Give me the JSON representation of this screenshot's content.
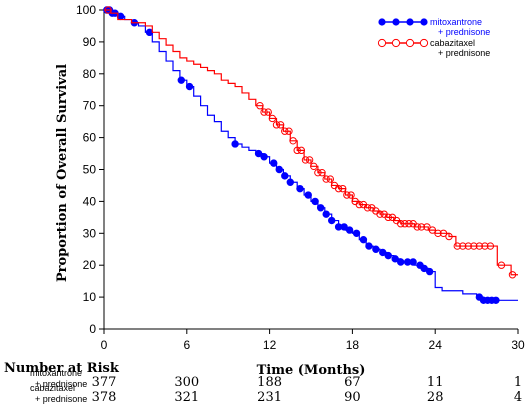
{
  "chart_data": {
    "type": "line",
    "title": "",
    "ylabel": "Proportion of Overall Survival",
    "xlabel": "Time (Months)",
    "xlim": [
      0,
      30
    ],
    "ylim": [
      0,
      100
    ],
    "x_ticks": [
      0,
      6,
      12,
      18,
      24,
      30
    ],
    "y_ticks": [
      0,
      10,
      20,
      30,
      40,
      50,
      60,
      70,
      80,
      90,
      100
    ],
    "legend_position": "top-right",
    "grid": false,
    "series": [
      {
        "name": "mitoxantrone + prednisone",
        "legend_lines": [
          "mitoxantrone",
          "+ prednisone"
        ],
        "color": "#0000ff",
        "marker": "filled-circle",
        "points": [
          [
            0,
            100
          ],
          [
            0.5,
            99
          ],
          [
            1,
            98
          ],
          [
            1.5,
            97
          ],
          [
            2,
            96
          ],
          [
            2.5,
            95
          ],
          [
            3,
            93
          ],
          [
            3.5,
            90
          ],
          [
            4,
            87
          ],
          [
            4.5,
            84
          ],
          [
            5,
            81
          ],
          [
            5.5,
            78
          ],
          [
            6,
            76
          ],
          [
            6.5,
            73
          ],
          [
            7,
            70
          ],
          [
            7.5,
            67
          ],
          [
            8,
            65
          ],
          [
            8.5,
            62
          ],
          [
            9,
            60
          ],
          [
            9.5,
            58
          ],
          [
            10,
            57
          ],
          [
            10.5,
            56
          ],
          [
            11,
            55
          ],
          [
            11.5,
            54
          ],
          [
            12,
            52
          ],
          [
            12.5,
            50
          ],
          [
            13,
            48
          ],
          [
            13.5,
            46
          ],
          [
            14,
            44
          ],
          [
            14.5,
            42
          ],
          [
            15,
            40
          ],
          [
            15.5,
            38
          ],
          [
            16,
            36
          ],
          [
            16.5,
            34
          ],
          [
            17,
            32
          ],
          [
            17.5,
            31
          ],
          [
            18,
            30
          ],
          [
            18.5,
            28
          ],
          [
            19,
            26
          ],
          [
            19.5,
            25
          ],
          [
            20,
            24
          ],
          [
            20.5,
            23
          ],
          [
            21,
            22
          ],
          [
            21.5,
            21
          ],
          [
            22,
            21
          ],
          [
            22.5,
            20
          ],
          [
            23,
            19
          ],
          [
            23.5,
            18
          ],
          [
            24,
            13
          ],
          [
            24.5,
            12
          ],
          [
            25,
            12
          ],
          [
            25.5,
            12
          ],
          [
            26,
            11
          ],
          [
            26.5,
            11
          ],
          [
            27,
            10
          ],
          [
            27.5,
            9
          ],
          [
            28,
            9
          ],
          [
            28.5,
            9
          ],
          [
            29,
            9
          ],
          [
            30,
            9
          ]
        ],
        "marker_x": [
          0.2,
          0.4,
          0.6,
          0.8,
          1.2,
          2.2,
          3.3,
          5.6,
          6.2,
          9.5,
          11.2,
          11.6,
          12.3,
          12.7,
          13.1,
          13.5,
          14.2,
          14.8,
          15.3,
          15.7,
          16.1,
          16.5,
          17.0,
          17.4,
          17.8,
          18.3,
          18.8,
          19.2,
          19.7,
          20.2,
          20.6,
          21.1,
          21.5,
          22.0,
          22.4,
          22.9,
          23.2,
          23.6,
          27.2,
          27.5,
          27.8,
          28.1,
          28.4
        ]
      },
      {
        "name": "cabazitaxel + prednisone",
        "legend_lines": [
          "cabazitaxel",
          "+ prednisone"
        ],
        "color": "#ff0000",
        "marker": "open-circle",
        "points": [
          [
            0,
            100
          ],
          [
            0.5,
            99
          ],
          [
            1,
            97
          ],
          [
            1.5,
            97
          ],
          [
            2,
            96
          ],
          [
            2.5,
            96
          ],
          [
            3,
            95
          ],
          [
            3.5,
            93
          ],
          [
            4,
            91
          ],
          [
            4.5,
            89
          ],
          [
            5,
            87
          ],
          [
            5.5,
            85
          ],
          [
            6,
            84
          ],
          [
            6.5,
            83
          ],
          [
            7,
            82
          ],
          [
            7.5,
            81
          ],
          [
            8,
            80
          ],
          [
            8.5,
            78
          ],
          [
            9,
            77
          ],
          [
            9.5,
            76
          ],
          [
            10,
            74
          ],
          [
            10.5,
            72
          ],
          [
            11,
            70
          ],
          [
            11.5,
            68
          ],
          [
            12,
            66
          ],
          [
            12.5,
            64
          ],
          [
            13,
            62
          ],
          [
            13.5,
            59
          ],
          [
            14,
            56
          ],
          [
            14.5,
            53
          ],
          [
            15,
            51
          ],
          [
            15.5,
            49
          ],
          [
            16,
            47
          ],
          [
            16.5,
            45
          ],
          [
            17,
            44
          ],
          [
            17.5,
            42
          ],
          [
            18,
            40
          ],
          [
            18.5,
            39
          ],
          [
            19,
            38
          ],
          [
            19.5,
            37
          ],
          [
            20,
            36
          ],
          [
            20.5,
            35
          ],
          [
            21,
            34
          ],
          [
            21.5,
            33
          ],
          [
            22,
            33
          ],
          [
            22.5,
            32
          ],
          [
            23,
            32
          ],
          [
            23.5,
            31
          ],
          [
            24,
            30
          ],
          [
            24.5,
            30
          ],
          [
            25,
            29
          ],
          [
            25.5,
            26
          ],
          [
            26,
            26
          ],
          [
            26.5,
            26
          ],
          [
            27,
            26
          ],
          [
            27.5,
            26
          ],
          [
            28,
            26
          ],
          [
            28.5,
            20
          ],
          [
            29,
            20
          ],
          [
            29.5,
            17
          ],
          [
            30,
            17
          ]
        ],
        "marker_x": [
          0.3,
          11.3,
          11.6,
          11.9,
          12.2,
          12.5,
          12.8,
          13.1,
          13.4,
          13.7,
          14.0,
          14.3,
          14.6,
          14.9,
          15.2,
          15.5,
          15.8,
          16.1,
          16.4,
          16.7,
          17.0,
          17.3,
          17.6,
          17.9,
          18.2,
          18.5,
          18.8,
          19.1,
          19.4,
          19.7,
          20.0,
          20.3,
          20.6,
          20.9,
          21.2,
          21.5,
          21.8,
          22.1,
          22.4,
          22.7,
          23.0,
          23.4,
          23.8,
          24.2,
          24.6,
          25.0,
          25.6,
          26.0,
          26.4,
          26.8,
          27.2,
          27.6,
          28.0,
          28.8,
          29.6
        ]
      }
    ]
  },
  "risk_table": {
    "title": "Number at Risk",
    "rows": [
      {
        "label_lines": [
          "mitoxantrone",
          "+ prednisone"
        ],
        "values": [
          "377",
          "300",
          "188",
          "67",
          "11",
          "1"
        ]
      },
      {
        "label_lines": [
          "cabazitaxel",
          "+ prednisone"
        ],
        "values": [
          "378",
          "321",
          "231",
          "90",
          "28",
          "4"
        ]
      }
    ]
  }
}
